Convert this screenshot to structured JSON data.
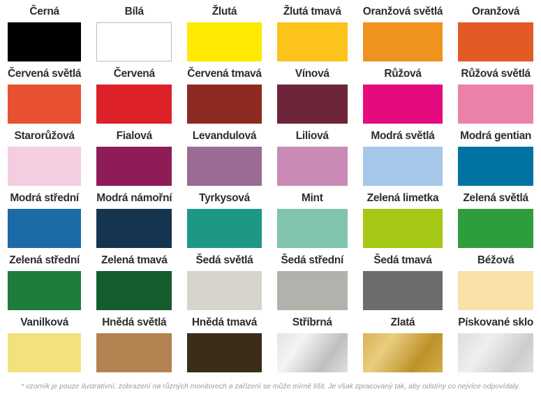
{
  "page": {
    "background": "#ffffff",
    "label_color": "#2d2d2d",
    "note_color": "#9b9b9b"
  },
  "footer": {
    "note": "* vzorník je pouze ilustrativní, zobrazení na různých monitorech a zařízení se může mírně lišit. Je však zpracovaný tak, aby odstíny co nejvíce odpovídaly."
  },
  "palette": {
    "columns": 6,
    "swatches": [
      {
        "name": "Černá",
        "color": "#000000"
      },
      {
        "name": "Bílá",
        "color": "#ffffff",
        "border": "#bcbcbc"
      },
      {
        "name": "Žlutá",
        "color": "#fdea00"
      },
      {
        "name": "Žlutá tmavá",
        "color": "#fcc31d"
      },
      {
        "name": "Oranžová světlá",
        "color": "#f0931e"
      },
      {
        "name": "Oranžová",
        "color": "#e25b26"
      },
      {
        "name": "Červená světlá",
        "color": "#e8512f"
      },
      {
        "name": "Červená",
        "color": "#dc2128"
      },
      {
        "name": "Červená tmavá",
        "color": "#8d2a22"
      },
      {
        "name": "Vínová",
        "color": "#6d2539"
      },
      {
        "name": "Růžová",
        "color": "#e50b7e"
      },
      {
        "name": "Růžová světlá",
        "color": "#e981a8"
      },
      {
        "name": "Starorůžová",
        "color": "#f5cde0"
      },
      {
        "name": "Fialová",
        "color": "#8f1c57"
      },
      {
        "name": "Levandulová",
        "color": "#9b6b94"
      },
      {
        "name": "Liliová",
        "color": "#c98ab6"
      },
      {
        "name": "Modrá světlá",
        "color": "#a5c7e9"
      },
      {
        "name": "Modrá gentian",
        "color": "#0073a2"
      },
      {
        "name": "Modrá střední",
        "color": "#1c6ba7"
      },
      {
        "name": "Modrá námořní",
        "color": "#153450"
      },
      {
        "name": "Tyrkysová",
        "color": "#1d9884"
      },
      {
        "name": "Mint",
        "color": "#80c5ab"
      },
      {
        "name": "Zelená limetka",
        "color": "#a5c716"
      },
      {
        "name": "Zelená světlá",
        "color": "#2e9e3c"
      },
      {
        "name": "Zelená střední",
        "color": "#1f7d3c"
      },
      {
        "name": "Zelená tmavá",
        "color": "#155c2f"
      },
      {
        "name": "Šedá světlá",
        "color": "#d6d4cb"
      },
      {
        "name": "Šedá střední",
        "color": "#b3b1ab"
      },
      {
        "name": "Šedá tmavá",
        "color": "#6c6c6c"
      },
      {
        "name": "Béžová",
        "color": "#f8e2aa"
      },
      {
        "name": "Vanilková",
        "color": "#f3e27b"
      },
      {
        "name": "Hnědá světlá",
        "color": "#b28350"
      },
      {
        "name": "Hnědá tmavá",
        "color": "#3b2d1a"
      },
      {
        "name": "Stříbrná",
        "gradient": {
          "angle": 125,
          "stops": [
            [
              "#e3e3e5",
              0
            ],
            [
              "#f4f4f5",
              30
            ],
            [
              "#bfbfc1",
              70
            ],
            [
              "#dfdfe1",
              100
            ]
          ]
        }
      },
      {
        "name": "Zlatá",
        "gradient": {
          "angle": 125,
          "stops": [
            [
              "#d9b356",
              0
            ],
            [
              "#eacd7f",
              30
            ],
            [
              "#bd9128",
              70
            ],
            [
              "#d2ad4b",
              100
            ]
          ]
        }
      },
      {
        "name": "Pískované sklo",
        "gradient": {
          "angle": 125,
          "stops": [
            [
              "#dcdddd",
              0
            ],
            [
              "#eeeff0",
              35
            ],
            [
              "#cbcdce",
              75
            ],
            [
              "#dfe0e1",
              100
            ]
          ]
        }
      }
    ]
  }
}
